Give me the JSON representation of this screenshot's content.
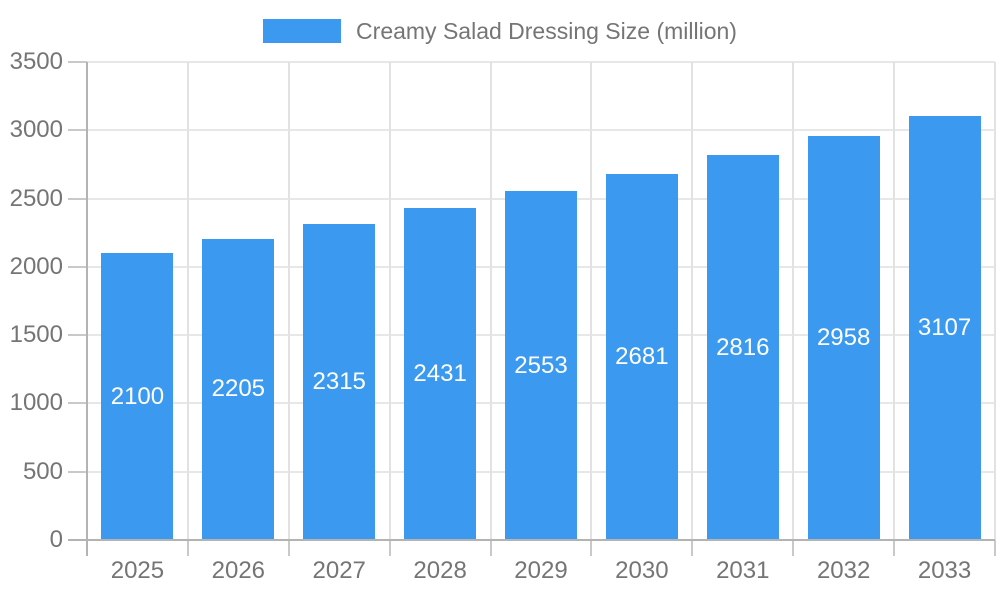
{
  "chart_data": {
    "type": "bar",
    "title": "Creamy Salad Dressing Size (million)",
    "series_name": "Creamy Salad Dressing Size (million)",
    "categories": [
      "2025",
      "2026",
      "2027",
      "2028",
      "2029",
      "2030",
      "2031",
      "2032",
      "2033"
    ],
    "values": [
      2100,
      2205,
      2315,
      2431,
      2553,
      2681,
      2816,
      2958,
      3107
    ],
    "xlabel": "",
    "ylabel": "",
    "ylim": [
      0,
      3500
    ],
    "yticks": [
      0,
      500,
      1000,
      1500,
      2000,
      2500,
      3000,
      3500
    ],
    "grid": true,
    "legend_position": "top",
    "bar_color": "#3b9af0",
    "value_label_color": "#ffffff",
    "axis_text_color": "#757575"
  }
}
